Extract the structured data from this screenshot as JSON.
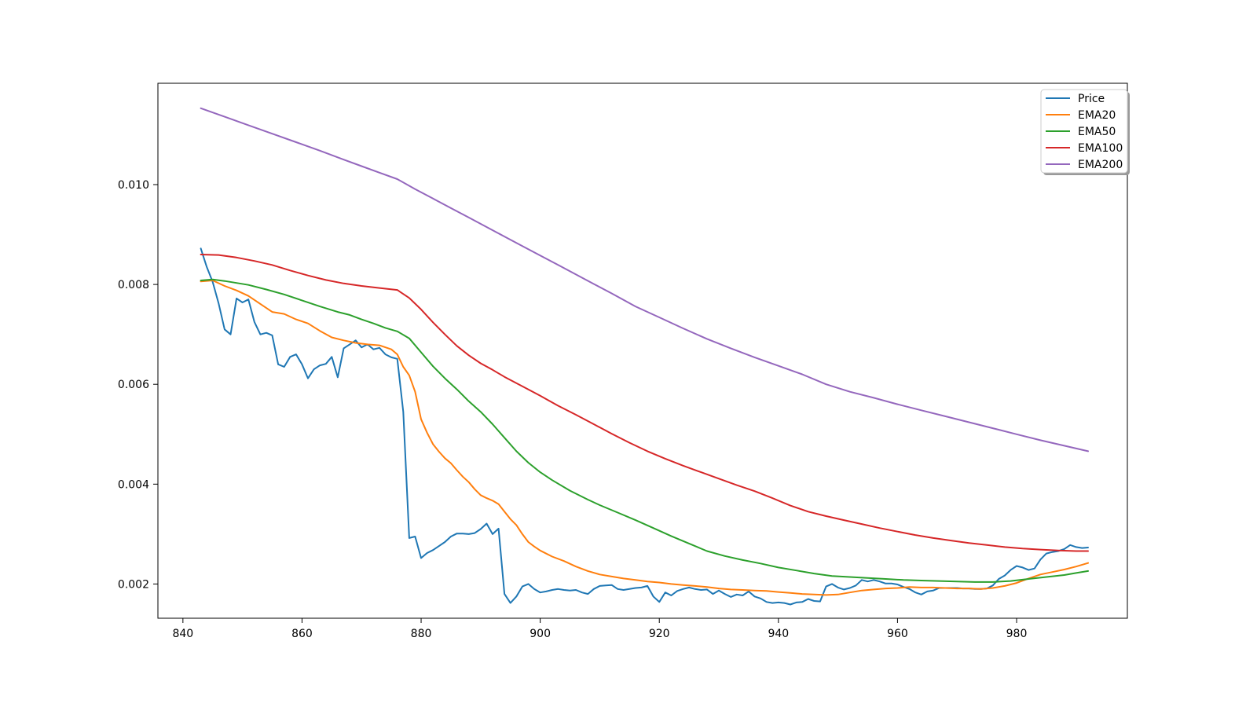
{
  "figure": {
    "background": "#ffffff"
  },
  "chart_data": {
    "type": "line",
    "title": "",
    "xlabel": "",
    "ylabel": "",
    "grid": false,
    "xlim": [
      835.8,
      998.6
    ],
    "ylim": [
      0.001314,
      0.01203
    ],
    "x_ticks": [
      840,
      860,
      880,
      900,
      920,
      940,
      960,
      980
    ],
    "y_ticks": [
      0.002,
      0.004,
      0.006,
      0.008,
      0.01
    ],
    "y_tick_decimals": 3,
    "legend": {
      "position": "upper right",
      "entries": [
        "Price",
        "EMA20",
        "EMA50",
        "EMA100",
        "EMA200"
      ],
      "border_color": "#cccccc",
      "background": "#ffffff",
      "shadow_color": "#999999"
    },
    "series": [
      {
        "name": "Price",
        "color": "#1f77b4",
        "x_start": 843,
        "x_step": 1,
        "y": [
          0.00872,
          0.00835,
          0.00805,
          0.00762,
          0.0071,
          0.007,
          0.00772,
          0.00764,
          0.0077,
          0.00725,
          0.007,
          0.00703,
          0.00698,
          0.0064,
          0.00635,
          0.00655,
          0.0066,
          0.0064,
          0.00612,
          0.0063,
          0.00638,
          0.00641,
          0.00655,
          0.00614,
          0.00672,
          0.0068,
          0.00688,
          0.00674,
          0.0068,
          0.0067,
          0.00673,
          0.0066,
          0.00654,
          0.00651,
          0.00545,
          0.00292,
          0.00295,
          0.00252,
          0.00262,
          0.00268,
          0.00276,
          0.00284,
          0.00295,
          0.00301,
          0.00301,
          0.003,
          0.00302,
          0.0031,
          0.00321,
          0.003,
          0.00311,
          0.0018,
          0.00162,
          0.00175,
          0.00195,
          0.002,
          0.0019,
          0.00183,
          0.00185,
          0.00188,
          0.0019,
          0.00188,
          0.00187,
          0.00188,
          0.00183,
          0.0018,
          0.0019,
          0.00196,
          0.00197,
          0.00198,
          0.0019,
          0.00188,
          0.0019,
          0.00192,
          0.00193,
          0.00196,
          0.00175,
          0.00164,
          0.00183,
          0.00177,
          0.00186,
          0.0019,
          0.00193,
          0.0019,
          0.00188,
          0.00189,
          0.0018,
          0.00187,
          0.0018,
          0.00174,
          0.00179,
          0.00177,
          0.00185,
          0.00175,
          0.00171,
          0.00164,
          0.00162,
          0.00163,
          0.00162,
          0.00159,
          0.00163,
          0.00164,
          0.0017,
          0.00166,
          0.00165,
          0.00195,
          0.002,
          0.00193,
          0.00189,
          0.00192,
          0.00197,
          0.00208,
          0.00205,
          0.00208,
          0.00205,
          0.00201,
          0.00201,
          0.00199,
          0.00194,
          0.0019,
          0.00183,
          0.00179,
          0.00185,
          0.00187,
          0.00192,
          0.00192,
          0.00192,
          0.00192,
          0.00191,
          0.00191,
          0.0019,
          0.0019,
          0.00191,
          0.00197,
          0.0021,
          0.00217,
          0.00228,
          0.00236,
          0.00233,
          0.00228,
          0.00231,
          0.00249,
          0.00261,
          0.00264,
          0.00266,
          0.0027,
          0.00278,
          0.00274,
          0.00272,
          0.00273
        ]
      },
      {
        "name": "EMA20",
        "color": "#ff7f0e",
        "x": [
          843,
          845,
          847,
          849,
          851,
          853,
          855,
          857,
          859,
          861,
          863,
          865,
          867,
          869,
          871,
          873,
          875,
          876,
          877,
          878,
          879,
          880,
          881,
          882,
          883,
          884,
          885,
          886,
          887,
          888,
          889,
          890,
          891,
          892,
          893,
          894,
          895,
          896,
          897,
          898,
          899,
          900,
          902,
          904,
          906,
          908,
          910,
          912,
          914,
          916,
          918,
          920,
          922,
          924,
          926,
          928,
          930,
          932,
          934,
          936,
          938,
          940,
          942,
          944,
          946,
          948,
          950,
          952,
          954,
          956,
          958,
          960,
          962,
          964,
          966,
          968,
          970,
          972,
          974,
          976,
          978,
          980,
          982,
          984,
          986,
          988,
          990,
          992
        ],
        "y": [
          0.00806,
          0.00808,
          0.00797,
          0.00788,
          0.00777,
          0.00761,
          0.00745,
          0.00741,
          0.0073,
          0.00722,
          0.00707,
          0.00694,
          0.00688,
          0.00683,
          0.0068,
          0.00678,
          0.0067,
          0.0066,
          0.00635,
          0.00618,
          0.00585,
          0.0053,
          0.00503,
          0.0048,
          0.00465,
          0.00452,
          0.00442,
          0.00428,
          0.00415,
          0.00404,
          0.0039,
          0.00378,
          0.00372,
          0.00367,
          0.0036,
          0.00345,
          0.0033,
          0.00318,
          0.003,
          0.00284,
          0.00275,
          0.00267,
          0.00255,
          0.00246,
          0.00235,
          0.00226,
          0.00219,
          0.00215,
          0.00211,
          0.00208,
          0.00205,
          0.00203,
          0.002,
          0.00198,
          0.00196,
          0.00194,
          0.00191,
          0.00189,
          0.00188,
          0.00187,
          0.00186,
          0.00184,
          0.00182,
          0.0018,
          0.00179,
          0.00178,
          0.00179,
          0.00183,
          0.00187,
          0.00189,
          0.00191,
          0.00192,
          0.00194,
          0.00193,
          0.00193,
          0.00192,
          0.00191,
          0.00191,
          0.0019,
          0.00192,
          0.00196,
          0.00202,
          0.00211,
          0.00219,
          0.00224,
          0.00229,
          0.00235,
          0.00242
        ]
      },
      {
        "name": "EMA50",
        "color": "#2ca02c",
        "x": [
          843,
          845,
          847,
          849,
          851,
          854,
          857,
          860,
          863,
          866,
          868,
          870,
          872,
          874,
          876,
          878,
          880,
          882,
          884,
          886,
          888,
          890,
          892,
          894,
          896,
          898,
          900,
          902,
          905,
          908,
          910,
          913,
          916,
          919,
          922,
          925,
          928,
          931,
          934,
          937,
          940,
          943,
          946,
          949,
          952,
          955,
          958,
          961,
          964,
          967,
          970,
          973,
          976,
          979,
          982,
          985,
          988,
          990,
          992
        ],
        "y": [
          0.00808,
          0.0081,
          0.00807,
          0.00803,
          0.00799,
          0.0079,
          0.0078,
          0.00768,
          0.00756,
          0.00745,
          0.00739,
          0.0073,
          0.00722,
          0.00713,
          0.00706,
          0.00692,
          0.00664,
          0.00636,
          0.00612,
          0.0059,
          0.00566,
          0.00545,
          0.0052,
          0.00493,
          0.00466,
          0.00443,
          0.00424,
          0.00408,
          0.00387,
          0.00369,
          0.00358,
          0.00343,
          0.00328,
          0.00312,
          0.00296,
          0.00281,
          0.00266,
          0.00256,
          0.00248,
          0.00241,
          0.00233,
          0.00227,
          0.00221,
          0.00216,
          0.00214,
          0.00212,
          0.0021,
          0.00208,
          0.00207,
          0.00206,
          0.00205,
          0.00204,
          0.00204,
          0.00206,
          0.0021,
          0.00214,
          0.00218,
          0.00222,
          0.00226
        ]
      },
      {
        "name": "EMA100",
        "color": "#d62728",
        "x": [
          843,
          846,
          849,
          852,
          855,
          858,
          861,
          864,
          867,
          870,
          873,
          876,
          878,
          880,
          882,
          884,
          886,
          888,
          890,
          892,
          894,
          897,
          900,
          903,
          906,
          909,
          912,
          915,
          918,
          921,
          924,
          927,
          930,
          933,
          936,
          939,
          942,
          945,
          948,
          951,
          954,
          957,
          960,
          963,
          966,
          969,
          972,
          975,
          978,
          981,
          984,
          987,
          990,
          992
        ],
        "y": [
          0.0086,
          0.00859,
          0.00854,
          0.00847,
          0.00839,
          0.00828,
          0.00818,
          0.00809,
          0.00802,
          0.00797,
          0.00793,
          0.00789,
          0.00773,
          0.0075,
          0.00724,
          0.007,
          0.00677,
          0.00658,
          0.00642,
          0.00629,
          0.00615,
          0.00596,
          0.00577,
          0.00557,
          0.00539,
          0.0052,
          0.00501,
          0.00483,
          0.00466,
          0.00451,
          0.00437,
          0.00424,
          0.00411,
          0.00398,
          0.00386,
          0.00372,
          0.00357,
          0.00345,
          0.00336,
          0.00328,
          0.0032,
          0.00312,
          0.00305,
          0.00298,
          0.00292,
          0.00287,
          0.00282,
          0.00278,
          0.00274,
          0.00271,
          0.00269,
          0.00267,
          0.00266,
          0.00266
        ]
      },
      {
        "name": "EMA200",
        "color": "#9467bd",
        "x": [
          843,
          847,
          851,
          855,
          859,
          863,
          867,
          870,
          873,
          876,
          879,
          882,
          885,
          888,
          891,
          894,
          897,
          900,
          903,
          906,
          909,
          912,
          916,
          920,
          924,
          928,
          932,
          936,
          940,
          944,
          948,
          952,
          956,
          960,
          964,
          968,
          972,
          976,
          980,
          984,
          988,
          992
        ],
        "y": [
          0.01153,
          0.01136,
          0.01119,
          0.01102,
          0.01085,
          0.01068,
          0.0105,
          0.01037,
          0.01024,
          0.01011,
          0.00991,
          0.00972,
          0.00953,
          0.00934,
          0.00915,
          0.00896,
          0.00877,
          0.00858,
          0.00839,
          0.0082,
          0.00801,
          0.00782,
          0.00756,
          0.00734,
          0.00712,
          0.00691,
          0.00672,
          0.00654,
          0.00637,
          0.0062,
          0.006,
          0.00585,
          0.00573,
          0.0056,
          0.00548,
          0.00536,
          0.00524,
          0.00512,
          0.005,
          0.00488,
          0.00477,
          0.00466
        ]
      }
    ]
  }
}
